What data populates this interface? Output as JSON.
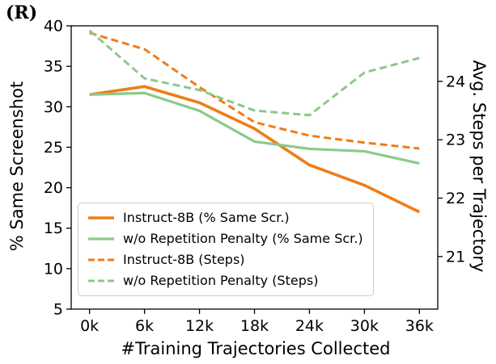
{
  "figure_label": "(R)",
  "chart_data": {
    "type": "line",
    "title": "",
    "xlabel": "#Training Trajectories Collected",
    "x_categories": [
      "0k",
      "6k",
      "12k",
      "18k",
      "24k",
      "30k",
      "36k"
    ],
    "left_axis": {
      "label": "% Same Screenshot",
      "ticks": [
        5,
        10,
        15,
        20,
        25,
        30,
        35,
        40
      ],
      "lim": [
        5,
        40
      ]
    },
    "right_axis": {
      "label": "Avg. Steps per Trajectory",
      "ticks": [
        21,
        22,
        23,
        24
      ],
      "lim": [
        20.1,
        24.95
      ]
    },
    "grid": false,
    "legend_position": "lower left",
    "colors": {
      "orange": "#ee7d18",
      "green": "#8bc98b"
    },
    "series": [
      {
        "name": "Instruct-8B (% Same Scr.)",
        "axis": "left",
        "color": "#ee7d18",
        "style": "solid",
        "width": 3.6,
        "values": [
          31.5,
          32.5,
          30.5,
          27.3,
          22.8,
          20.3,
          17.0
        ]
      },
      {
        "name": "w/o Repetition Penalty (% Same Scr.)",
        "axis": "left",
        "color": "#8bc98b",
        "style": "solid",
        "width": 3.2,
        "values": [
          31.5,
          31.7,
          29.5,
          25.7,
          24.8,
          24.5,
          23.0
        ]
      },
      {
        "name": "Instruct-8B (Steps)",
        "axis": "right",
        "color": "#ee7d18",
        "style": "dashed",
        "width": 3.0,
        "values": [
          24.83,
          24.55,
          23.9,
          23.3,
          23.07,
          22.95,
          22.85
        ]
      },
      {
        "name": "w/o Repetition Penalty (Steps)",
        "axis": "right",
        "color": "#8bc98b",
        "style": "dashed",
        "width": 3.0,
        "values": [
          24.87,
          24.05,
          23.85,
          23.5,
          23.42,
          24.15,
          24.4
        ]
      }
    ]
  }
}
